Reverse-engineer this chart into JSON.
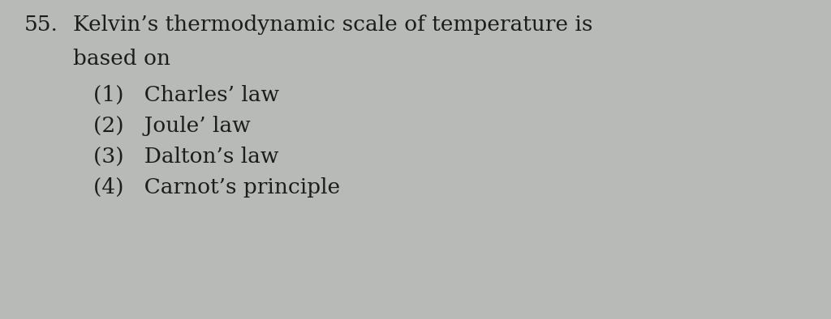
{
  "background_color": "#b8bab8",
  "question_number": "55.",
  "question_text_line1": "Kelvin’s thermodynamic scale of temperature is",
  "question_text_line2": "based on",
  "options": [
    "(1)   Charles’ law",
    "(2)   Joule’ law",
    "(3)   Dalton’s law",
    "(4)   Carnot’s principle"
  ],
  "text_color": "#1c1c1c",
  "font_size_question": 19,
  "font_size_options": 19,
  "question_num_fontsize": 19,
  "fig_width": 10.24,
  "fig_height": 3.94,
  "dpi": 100
}
